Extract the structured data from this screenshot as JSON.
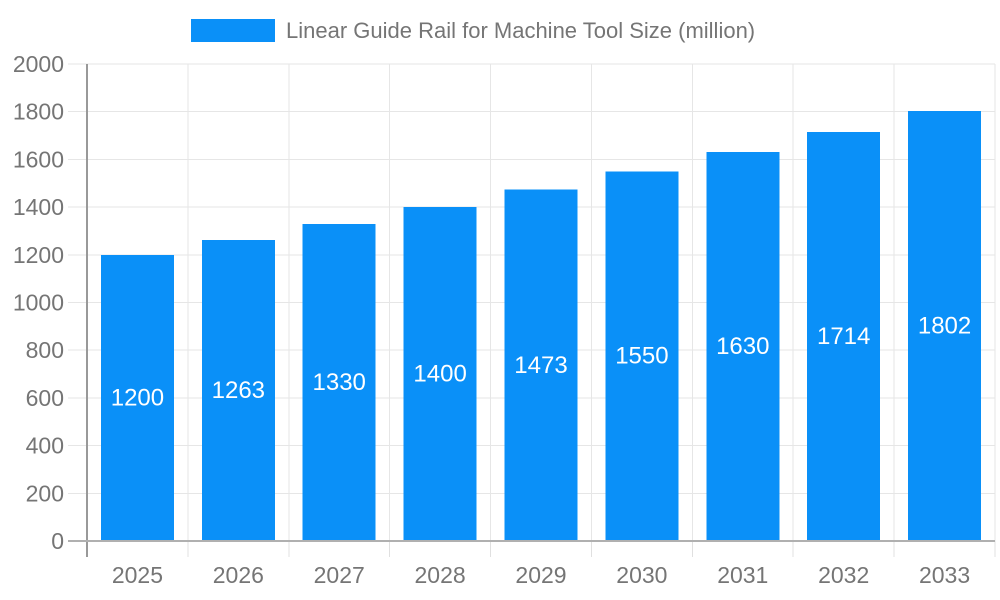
{
  "chart_data": {
    "type": "bar",
    "title": "Linear Guide Rail for Machine Tool Size (million)",
    "categories": [
      "2025",
      "2026",
      "2027",
      "2028",
      "2029",
      "2030",
      "2031",
      "2032",
      "2033"
    ],
    "values": [
      1200,
      1263,
      1330,
      1400,
      1473,
      1550,
      1630,
      1714,
      1802
    ],
    "xlabel": "",
    "ylabel": "",
    "ylim": [
      0,
      2000
    ],
    "ytick_step": 200,
    "ytick_labels": [
      "0",
      "200",
      "400",
      "600",
      "800",
      "1000",
      "1200",
      "1400",
      "1600",
      "1800",
      "2000"
    ],
    "grid": true,
    "legend_position": "top",
    "bar_value_labels_visible": true
  },
  "colors": {
    "bar": "#0a90f8",
    "bar_value_label": "#ffffff",
    "axis_text": "#757575",
    "title_text": "#757575",
    "gridline": "#e6e6e6",
    "boundary_tick": "#e0e0e0",
    "y_axis_line": "#999999",
    "x_axis_line": "#b0b0b0"
  }
}
